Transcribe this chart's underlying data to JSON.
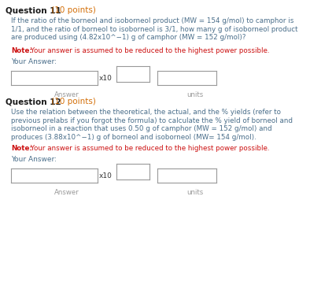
{
  "bg_color": "#ffffff",
  "q11_title_bold": "Question 11",
  "q11_title_points": " (10 points)",
  "q11_body_lines": [
    "If the ratio of the borneol and isoborneol product (MW = 154 g/mol) to camphor is",
    "1/1, and the ratio of borneol to isoborneol is 3/1, how many g of isoborneol product",
    "are produced using (4.82x10^−1) g of camphor (MW = 152 g/mol)?"
  ],
  "note_label": "Note:",
  "note_text": " Your answer is assumed to be reduced to the highest power possible.",
  "your_answer": "Your Answer:",
  "x10_label": "x10",
  "answer_label": "Answer",
  "units_label": "units",
  "q12_title_bold": "Question 12",
  "q12_title_points": " (10 points)",
  "q12_body_lines": [
    "Use the relation between the theoretical, the actual, and the % yields (refer to",
    "previous prelabs if you forgot the formula) to calculate the % yield of borneol and",
    "isoborneol in a reaction that uses 0.50 g of camphor (MW = 152 g/mol) and",
    "produces (3.88x10^−1) g of borneol and isoborneol (MW= 154 g/mol)."
  ],
  "title_color": "#1a1a1a",
  "points_color": "#d4700a",
  "body_color": "#4a6e8a",
  "note_color": "#cc1111",
  "your_answer_color": "#4a6e8a",
  "box_edge_color": "#999999",
  "label_color": "#999999",
  "x10_color": "#333333"
}
